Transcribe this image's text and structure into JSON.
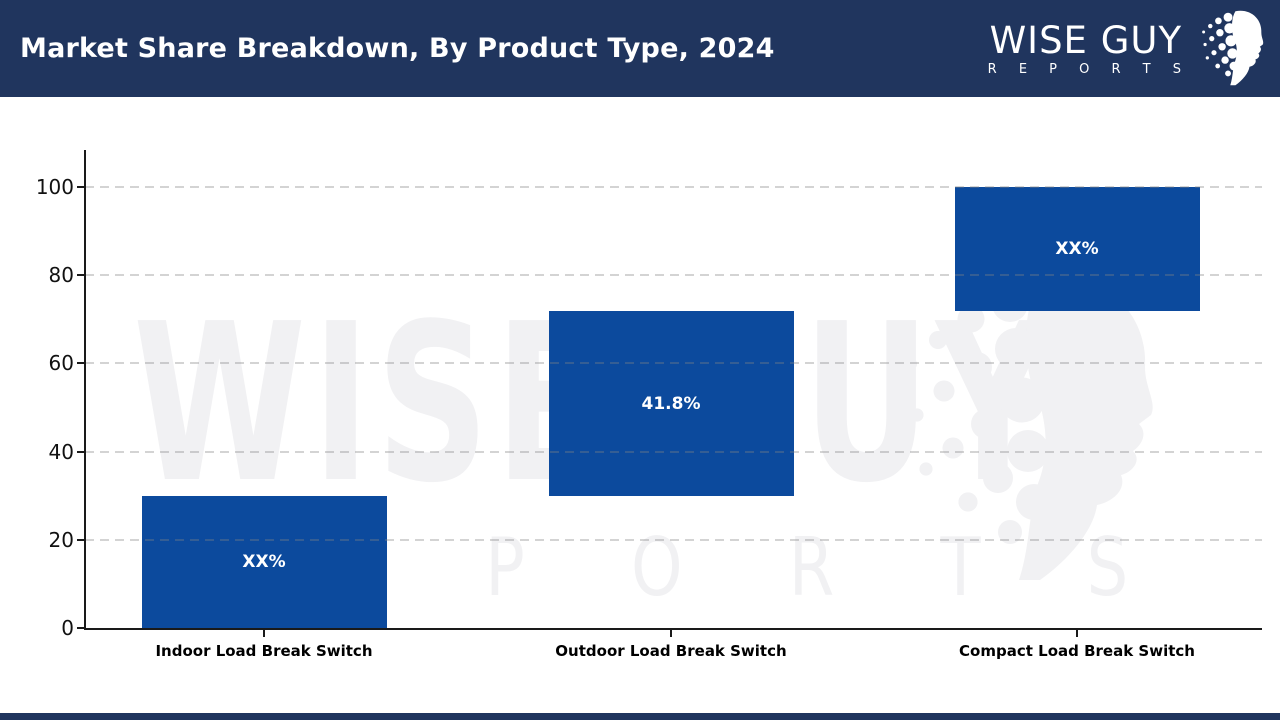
{
  "header": {
    "title": "Market Share Breakdown, By Product Type, 2024",
    "logo": {
      "wordmark": "WISE GUY",
      "tagline": "R E P O R T S"
    }
  },
  "watermark": {
    "wordmark": "WISE GUY",
    "tagline": "R E P O R T S"
  },
  "colors": {
    "header_bg": "#20355e",
    "footer_bg": "#20355e",
    "bar": "#0c4a9d",
    "bar_label": "#ffffff",
    "grid": "#d9d9d9",
    "axis": "#1a1a1a",
    "watermark": "#f1f1f3",
    "title_text": "#ffffff"
  },
  "chart_data": {
    "type": "bar",
    "subtype": "waterfall",
    "title": "Market Share Breakdown, By Product Type, 2024",
    "categories": [
      "Indoor Load Break Switch",
      "Outdoor Load Break Switch",
      "Compact Load Break Switch"
    ],
    "series": [
      {
        "name": "Market share (%)",
        "segments": [
          {
            "category": "Indoor Load Break Switch",
            "start": 0,
            "end": 30,
            "label": "XX%"
          },
          {
            "category": "Outdoor Load Break Switch",
            "start": 30,
            "end": 71.8,
            "label": "41.8%"
          },
          {
            "category": "Compact Load Break Switch",
            "start": 71.8,
            "end": 100,
            "label": "XX%"
          }
        ]
      }
    ],
    "yticks": [
      0,
      20,
      40,
      60,
      80,
      100
    ],
    "ylim": [
      0,
      108.4
    ],
    "xlabel": "",
    "ylabel": "",
    "grid": "horizontal-dashed",
    "legend": "none"
  }
}
